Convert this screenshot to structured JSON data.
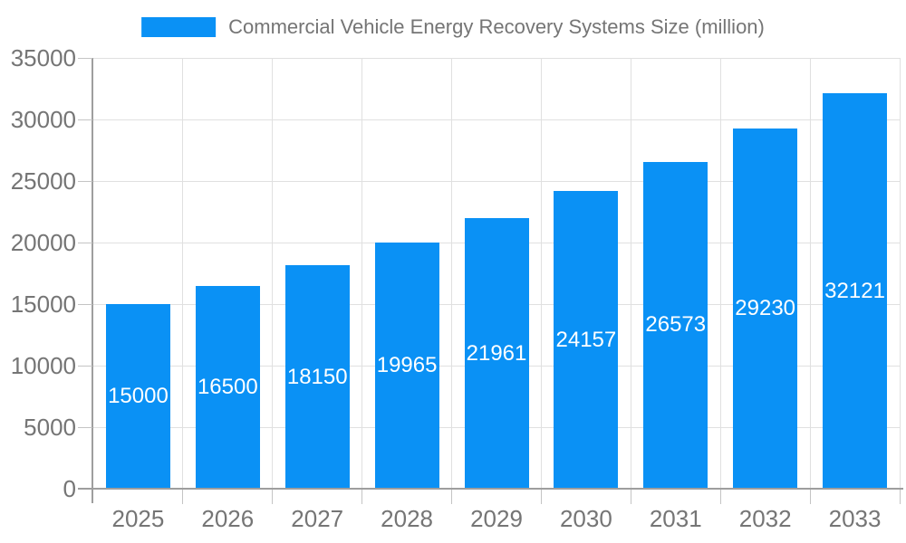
{
  "page": {
    "background_color": "#ffffff"
  },
  "legend": {
    "position": "top-center",
    "swatch_icon": "blue-rect-swatch"
  },
  "chart_data": {
    "type": "bar",
    "title": "Commercial Vehicle Energy Recovery Systems Size (million)",
    "categories": [
      "2025",
      "2026",
      "2027",
      "2028",
      "2029",
      "2030",
      "2031",
      "2032",
      "2033"
    ],
    "values": [
      15000,
      16500,
      18150,
      19965,
      21961,
      24157,
      26573,
      29230,
      32121
    ],
    "value_labels": [
      "15000",
      "16500",
      "18150",
      "19965",
      "21961",
      "24157",
      "26573",
      "29230",
      "32121"
    ],
    "xlabel": "",
    "ylabel": "",
    "ylim": [
      0,
      35000
    ],
    "yticks": [
      0,
      5000,
      10000,
      15000,
      20000,
      25000,
      30000,
      35000
    ],
    "grid": true,
    "legend_position": "top-center",
    "bar_color": "#0a91f5",
    "value_label_color": "#ffffff",
    "tick_label_color": "#757575",
    "gridline_color": "#e0e0e0",
    "axis_color": "#9e9e9e",
    "tick_mark_color": "#c4c4c4"
  }
}
